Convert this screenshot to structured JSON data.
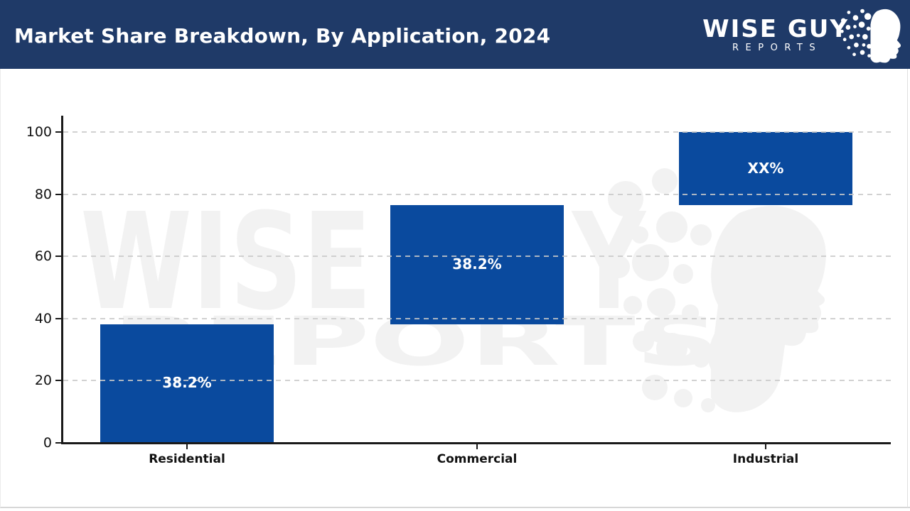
{
  "header": {
    "title": "Market Share Breakdown, By Application, 2024",
    "logo": {
      "wordmark": "WISE GUY",
      "subtext": "REPORTS"
    }
  },
  "watermark": {
    "wordmark": "WISE GUY",
    "subtext": "REPORTS"
  },
  "chart_data": {
    "type": "bar",
    "variant": "stacked-waterfall-percentage",
    "title": "Market Share Breakdown, By Application, 2024",
    "categories": [
      "Residential",
      "Commercial",
      "Industrial"
    ],
    "series": [
      {
        "name": "Market Share",
        "segments": [
          [
            0,
            38.2
          ],
          [
            38.2,
            76.4
          ],
          [
            76.4,
            100
          ]
        ],
        "labels": [
          "38.2%",
          "38.2%",
          "XX%"
        ]
      }
    ],
    "xlabel": "",
    "ylabel": "",
    "ylim": [
      0,
      100
    ],
    "yticks": [
      0,
      20,
      40,
      60,
      80,
      100
    ],
    "grid": "horizontal-dashed-over-bars",
    "legend": "none"
  },
  "colors": {
    "header_bg": "#1f3a68",
    "bar": "#0a4a9e",
    "bar_label": "#ffffff",
    "grid": "#c9c9c9",
    "axis": "#1a1a1a",
    "watermark": "#f2f2f2"
  }
}
